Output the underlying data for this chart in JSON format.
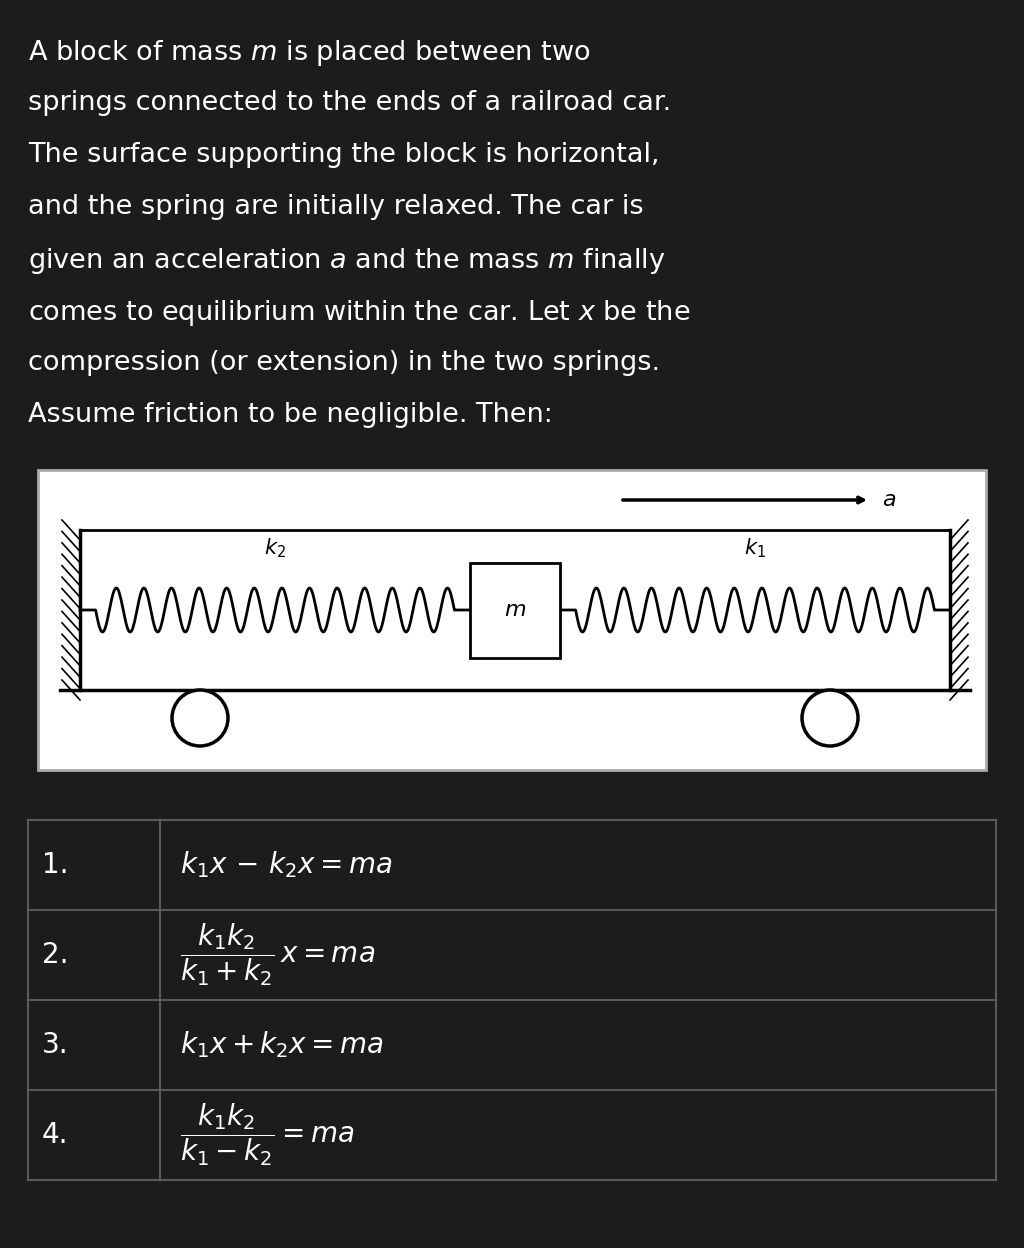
{
  "bg_color": "#1c1c1c",
  "text_color": "#ffffff",
  "diagram_bg": "#ffffff",
  "table_border_color": "#666666",
  "font_size_paragraph": 19.5,
  "font_size_option": 20,
  "font_size_number": 20,
  "paragraph_lines": [
    "A block of mass $m$ is placed between two",
    "springs connected to the ends of a railroad car.",
    "The surface supporting the block is horizontal,",
    "and the spring are initially relaxed. The car is",
    "given an acceleration $a$ and the mass $m$ finally",
    "comes to equilibrium within the car. Let $x$ be the",
    "compression (or extension) in the two springs.",
    "Assume friction to be negligible. Then:"
  ],
  "options": [
    {
      "num": "1.",
      "formula": "$k_1 x\\,-\\,k_2 x = ma$"
    },
    {
      "num": "2.",
      "formula": "$\\dfrac{k_1 k_2}{k_1+k_2}\\,x = ma$"
    },
    {
      "num": "3.",
      "formula": "$k_1 x + k_2 x = ma$"
    },
    {
      "num": "4.",
      "formula": "$\\dfrac{k_1 k_2}{k_1-k_2} = ma$"
    }
  ]
}
